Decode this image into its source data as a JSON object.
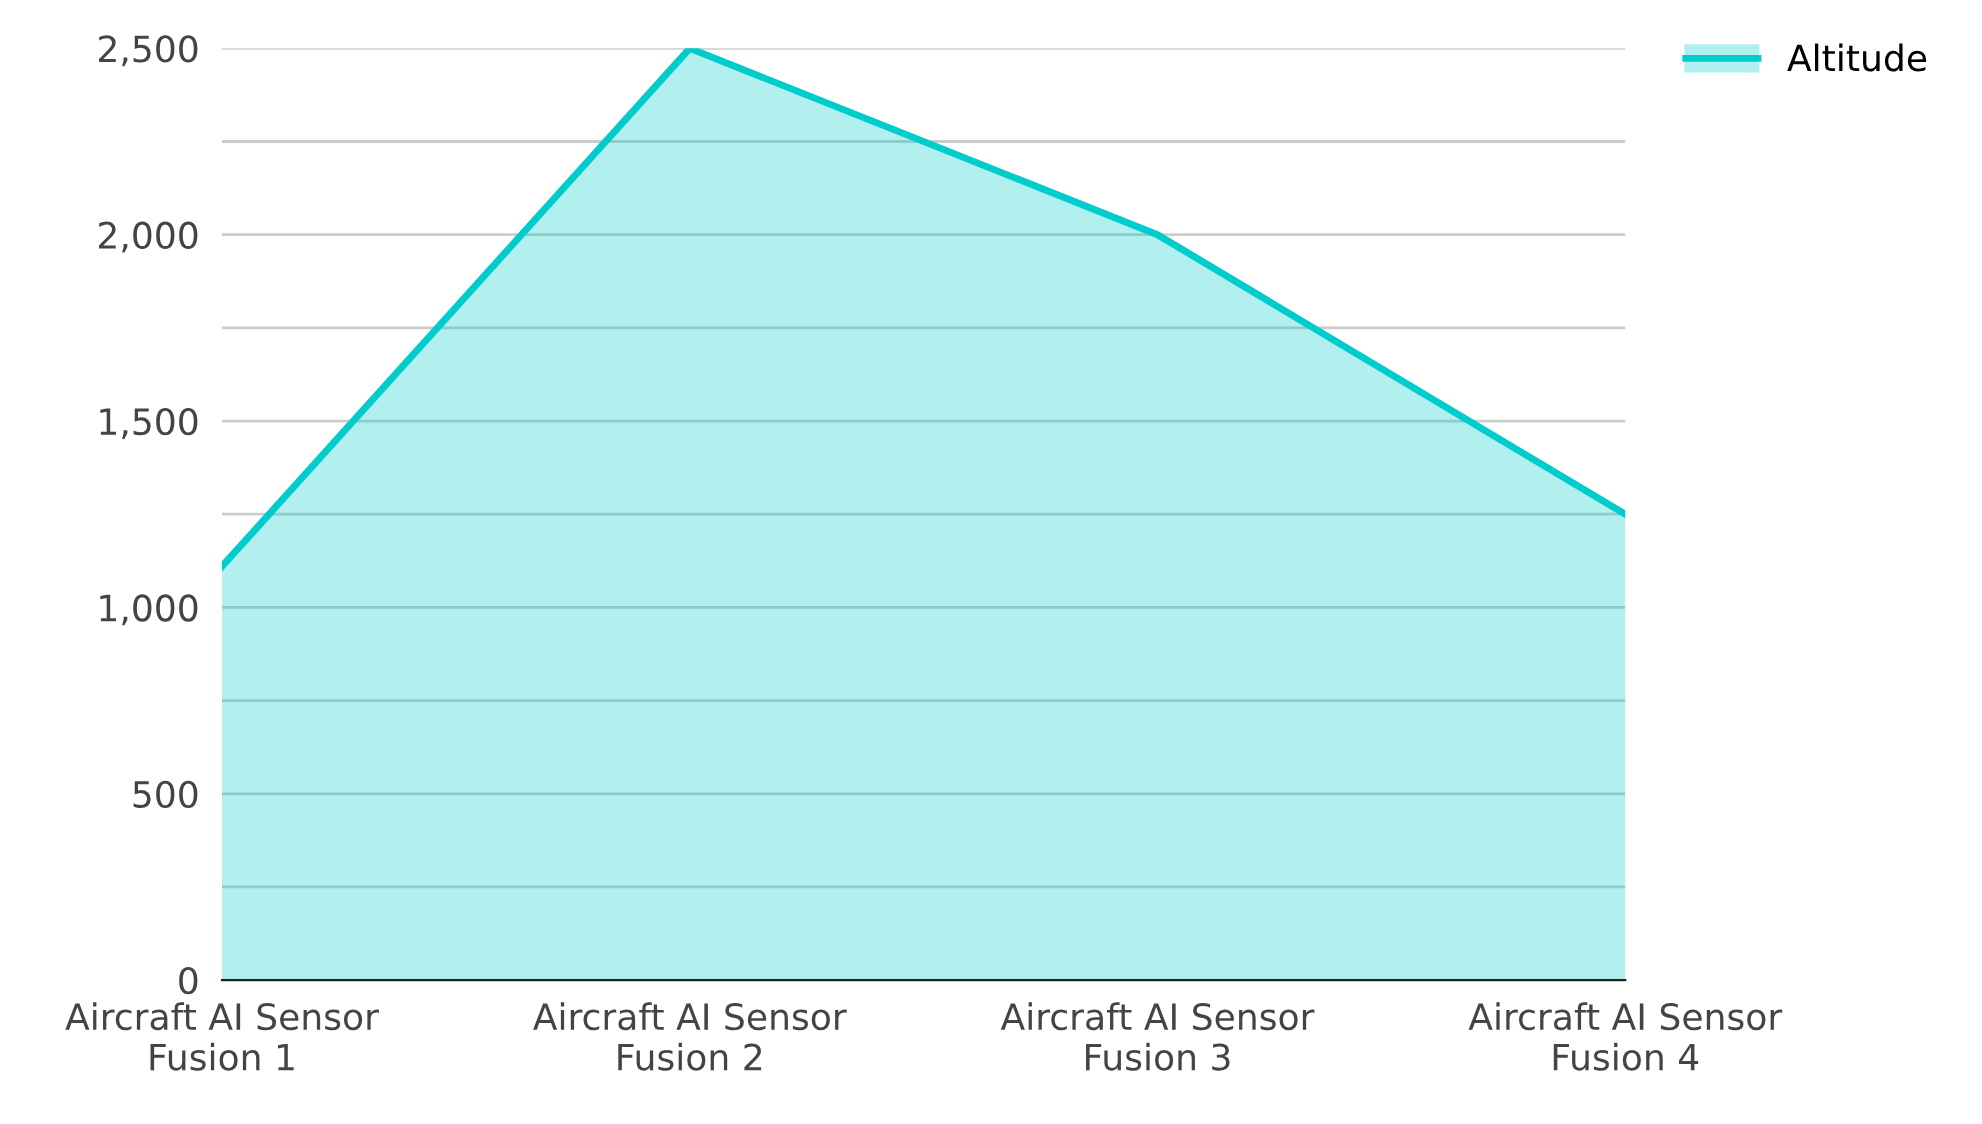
{
  "chart_data": {
    "type": "area",
    "categories": [
      "Aircraft AI Sensor\nFusion 1",
      "Aircraft AI Sensor\nFusion 2",
      "Aircraft AI Sensor\nFusion 3",
      "Aircraft AI Sensor\nFusion 4"
    ],
    "series": [
      {
        "name": "Altitude",
        "color": "#00cccc",
        "values": [
          1110,
          2500,
          2000,
          1250
        ]
      }
    ],
    "ylim": [
      0,
      2500
    ],
    "yticks": [
      0,
      {
        "value": 250,
        "label": null
      },
      500,
      {
        "value": 750,
        "label": null
      },
      {
        "value": 1000,
        "label": "1,000"
      },
      {
        "value": 1250,
        "label": null
      },
      {
        "value": 1500,
        "label": "1,500"
      },
      {
        "value": 1750,
        "label": null
      },
      {
        "value": 2000,
        "label": "2,000"
      },
      {
        "value": 2250,
        "label": null
      },
      {
        "value": 2500,
        "label": "2,500"
      }
    ],
    "grid": "y",
    "legend": "top right"
  }
}
